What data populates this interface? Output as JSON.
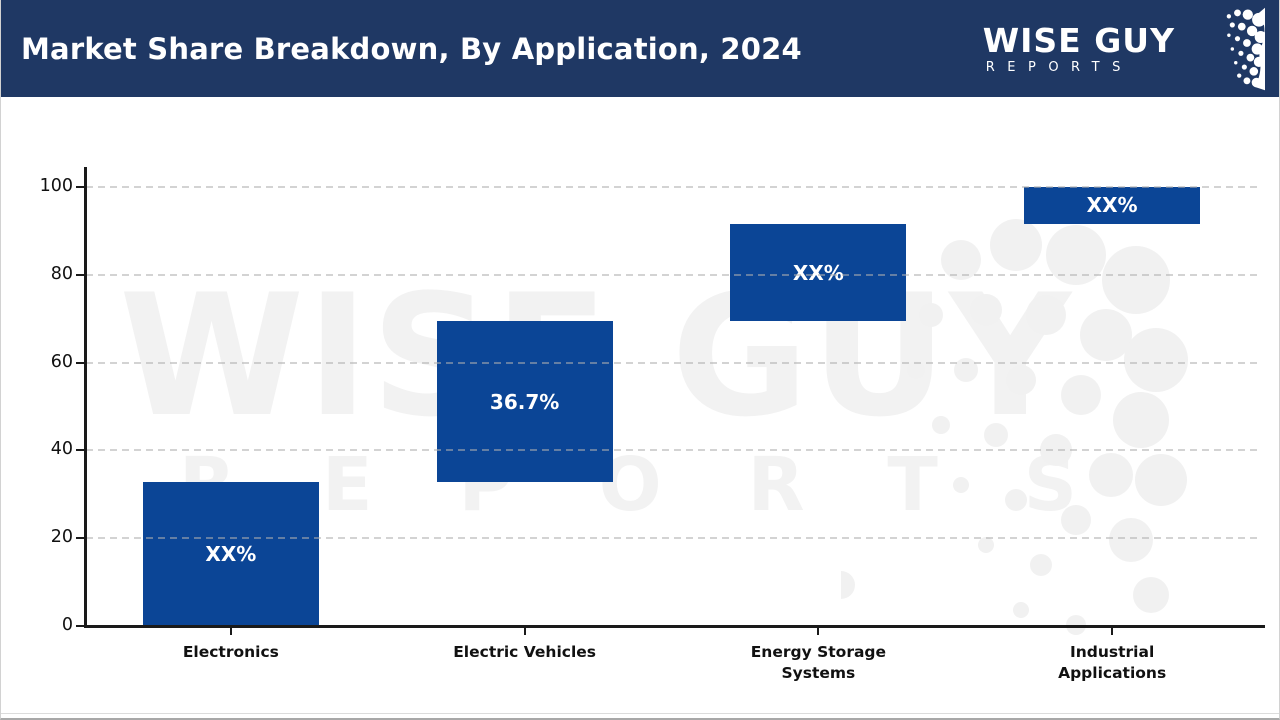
{
  "header": {
    "title": "Market Share Breakdown, By Application, 2024",
    "bg_color": "#1F3864",
    "title_color": "#ffffff",
    "logo": {
      "line1": "WISE GUY",
      "line2": "REPORTS"
    }
  },
  "watermark": {
    "line1": "WISE GUY",
    "line2": "REPORTS"
  },
  "chart_data": {
    "type": "bar",
    "variant": "waterfall",
    "title": "Market Share Breakdown, By Application, 2024",
    "categories": [
      "Electronics",
      "Electric Vehicles",
      "Energy Storage Systems",
      "Industrial Applications"
    ],
    "segments": [
      {
        "category": "Electronics",
        "start": 0,
        "end": 32.7,
        "value": 32.7,
        "label": "XX%"
      },
      {
        "category": "Electric Vehicles",
        "start": 32.7,
        "end": 69.4,
        "value": 36.7,
        "label": "36.7%"
      },
      {
        "category": "Energy Storage Systems",
        "start": 69.4,
        "end": 91.6,
        "value": 22.2,
        "label": "XX%"
      },
      {
        "category": "Industrial Applications",
        "start": 91.6,
        "end": 100,
        "value": 8.4,
        "label": "XX%"
      }
    ],
    "xlabel": "",
    "ylabel": "",
    "ylim": [
      0,
      100
    ],
    "yticks": [
      0,
      20,
      40,
      60,
      80,
      100
    ],
    "grid": "horizontal-dashed-above-bars",
    "legend": "none",
    "bar_color": "#0B4596",
    "bar_label_color": "#ffffff",
    "axis_color": "#1a1a1a"
  }
}
